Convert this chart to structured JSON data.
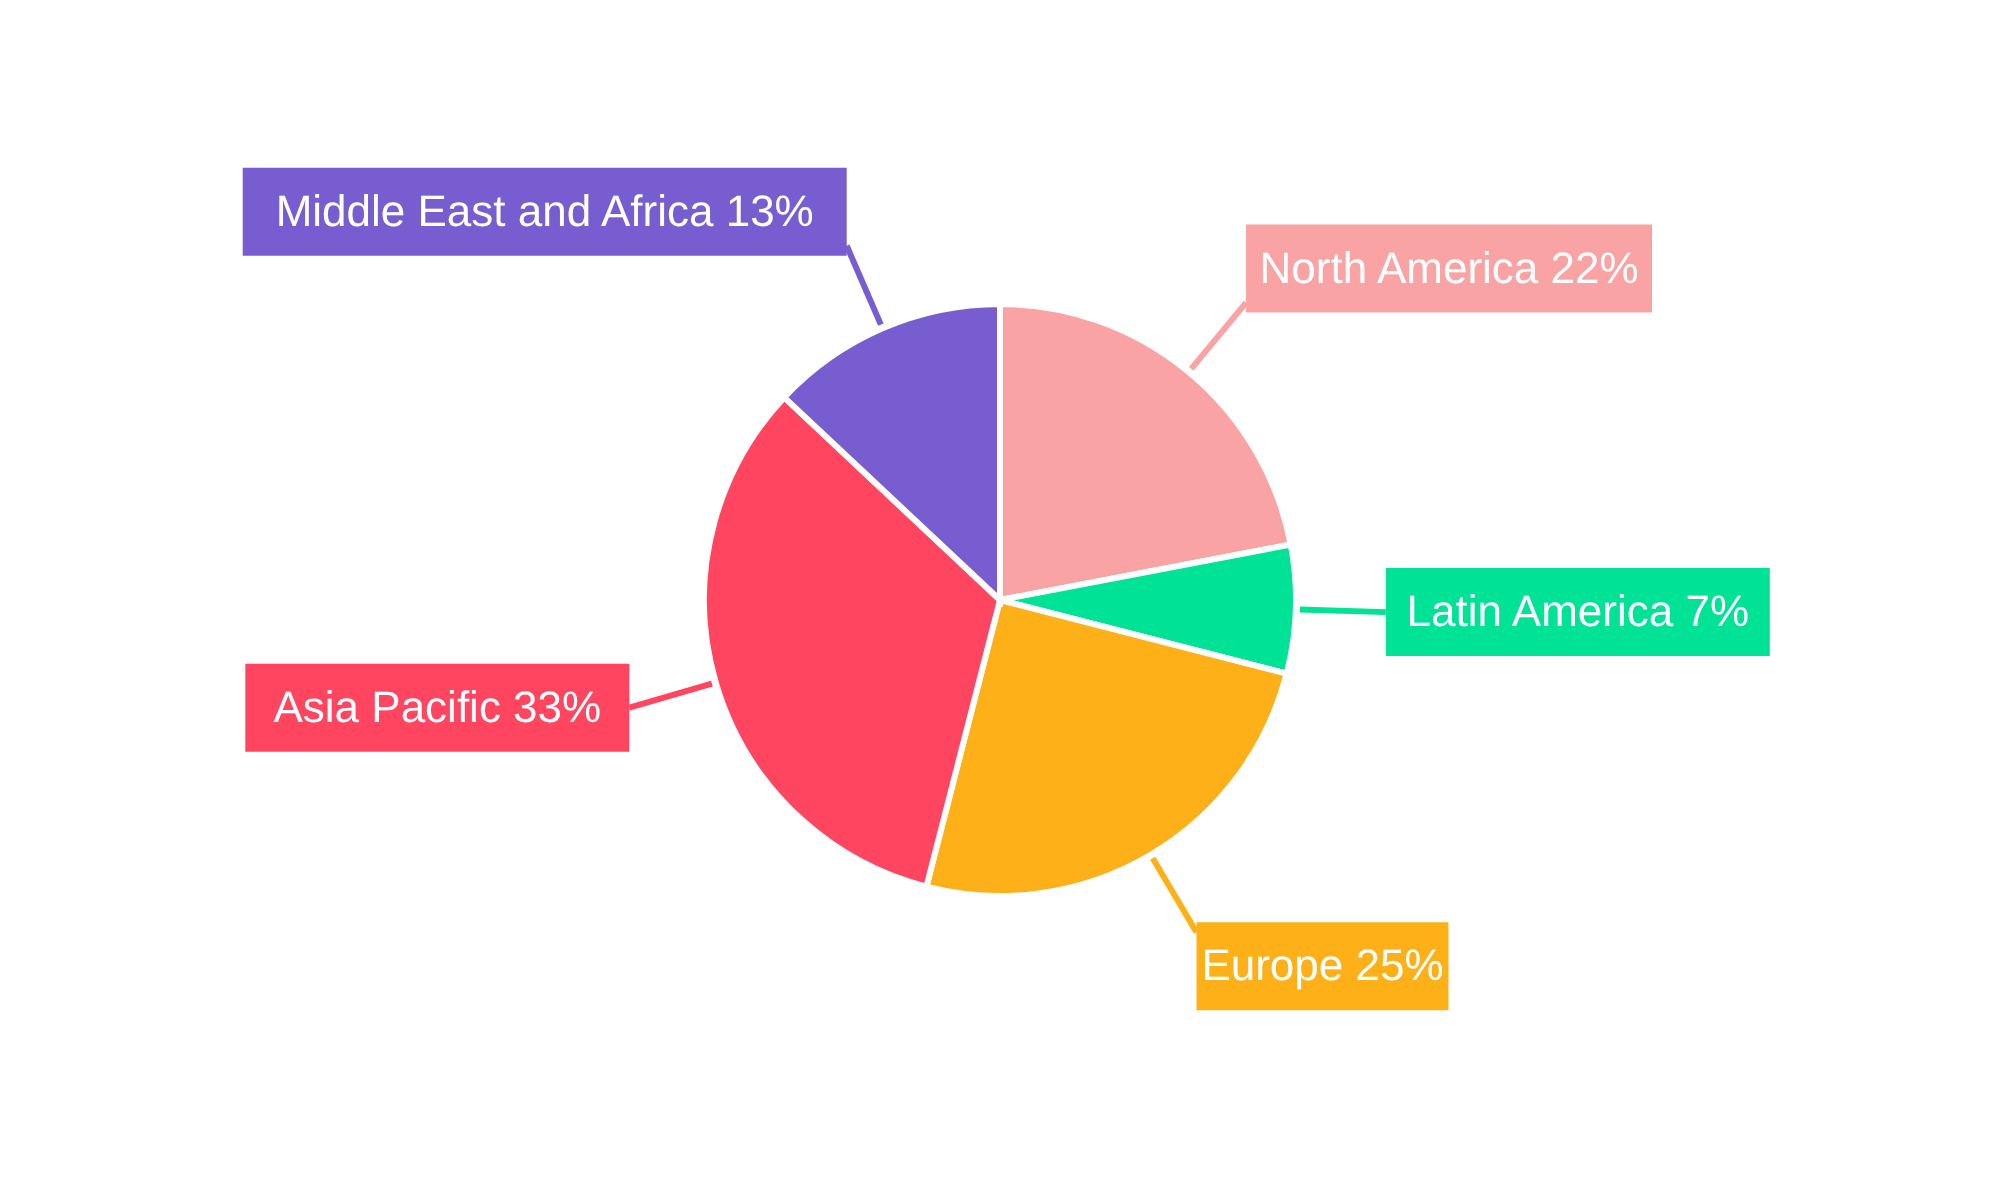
{
  "chart_data": {
    "type": "pie",
    "categories": [
      "North America",
      "Latin America",
      "Europe",
      "Asia Pacific",
      "Middle East and Africa"
    ],
    "values": [
      22,
      7,
      25,
      33,
      13
    ],
    "value_labels": [
      "22%",
      "7%",
      "25%",
      "33%",
      "13%"
    ],
    "colors": [
      "#f9a3a4",
      "#00e396",
      "#feb019",
      "#ff4560",
      "#775dd0"
    ]
  }
}
